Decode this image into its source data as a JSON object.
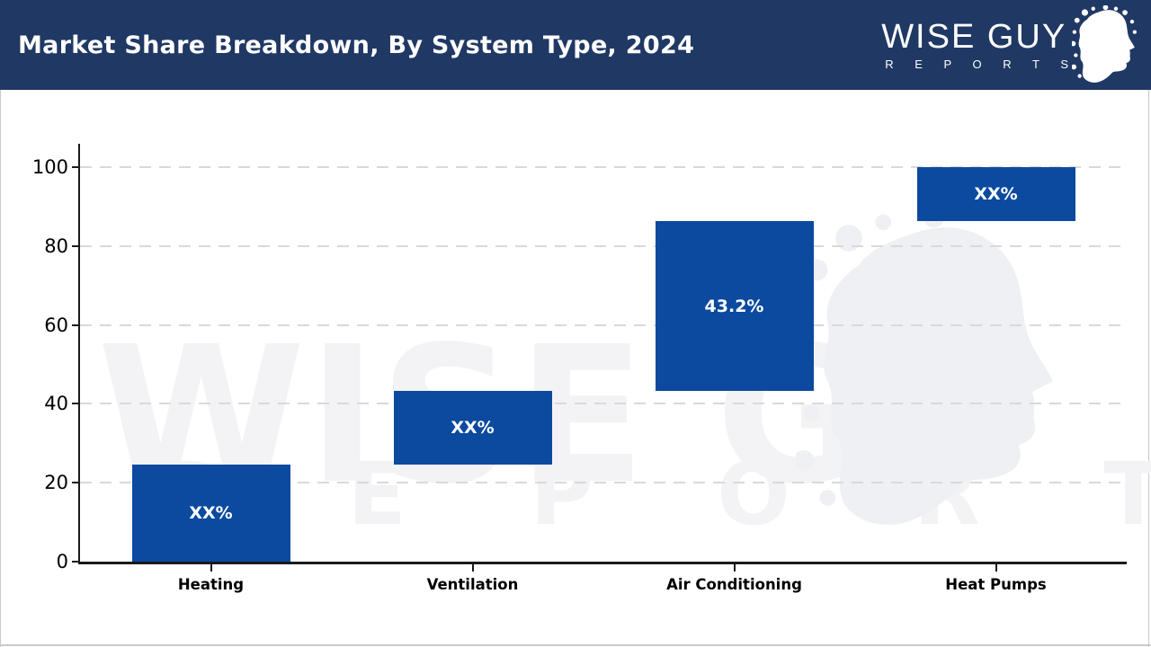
{
  "header": {
    "title": "Market Share Breakdown, By System Type, 2024",
    "logo": {
      "line1": "WISE GUY",
      "line2": "R E P O R T S"
    }
  },
  "watermark": {
    "line1": "WISE GU",
    "line2": "R E P O R T S"
  },
  "colors": {
    "header_bg": "#203864",
    "bar": "#0b4a9f",
    "bar_label": "#ffffff",
    "grid": "#d9d9d9",
    "axis": "#1a1a1a",
    "watermark": "#f3f3f6"
  },
  "chart_data": {
    "type": "bar",
    "subtype": "waterfall",
    "title": "Market Share Breakdown, By System Type, 2024",
    "categories": [
      "Heating",
      "Ventilation",
      "Air Conditioning",
      "Heat Pumps"
    ],
    "segments": [
      {
        "category": "Heating",
        "start": 0,
        "end": 24.7,
        "label": "XX%"
      },
      {
        "category": "Ventilation",
        "start": 24.7,
        "end": 43.2,
        "label": "XX%"
      },
      {
        "category": "Air Conditioning",
        "start": 43.2,
        "end": 86.4,
        "label": "43.2%"
      },
      {
        "category": "Heat Pumps",
        "start": 86.4,
        "end": 100,
        "label": "XX%"
      }
    ],
    "yticks": [
      0,
      20,
      40,
      60,
      80,
      100
    ],
    "ylim": [
      0,
      106
    ],
    "xlabel": "",
    "ylabel": "",
    "grid": "dashed-horizontal",
    "legend": "none"
  }
}
